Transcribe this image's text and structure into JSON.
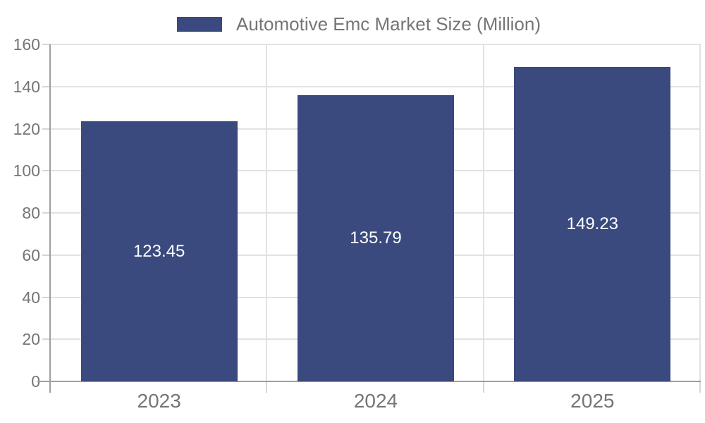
{
  "legend": {
    "label": "Automotive Emc Market Size (Million)"
  },
  "colors": {
    "bar": "#3A4A7E",
    "grid": "#e2e2e2",
    "tick_mark": "#d6d6d6",
    "axis": "#9e9e9e",
    "text": "#757575",
    "value_text": "#ffffff",
    "background": "#ffffff"
  },
  "chart_data": {
    "type": "bar",
    "title": "Automotive Emc Market Size (Million)",
    "categories": [
      "2023",
      "2024",
      "2025"
    ],
    "values": [
      123.45,
      135.79,
      149.23
    ],
    "value_labels": [
      "123.45",
      "135.79",
      "149.23"
    ],
    "xlabel": "",
    "ylabel": "",
    "ylim": [
      0,
      160
    ],
    "yticks": [
      0,
      20,
      40,
      60,
      80,
      100,
      120,
      140,
      160
    ],
    "grid": true,
    "legend_position": "top-center",
    "value_label_position": "inside-center"
  }
}
